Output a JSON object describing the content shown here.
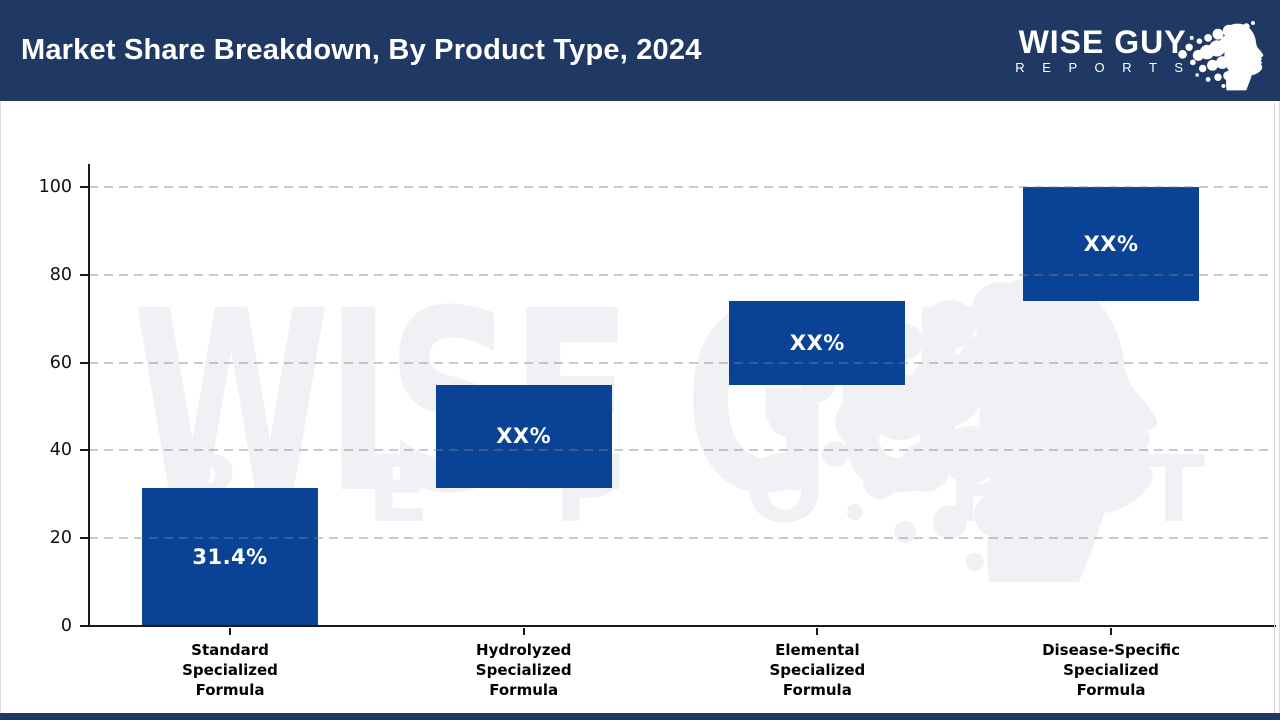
{
  "header": {
    "title": "Market Share Breakdown, By Product Type, 2024",
    "logo": {
      "brand": "WISE GUY",
      "tagline": "R E P O R T S"
    }
  },
  "watermark": {
    "brand": "WISE GUY",
    "tagline": "R E P O R T S"
  },
  "colors": {
    "header_bg": "#1f3864",
    "footer_bg": "#1f3864",
    "bar": "#0a4296",
    "bar_label": "#ffffff",
    "axis": "#1a1a1a",
    "gridline": "rgba(128,128,128,0.42)",
    "watermark": "#f0f1f4",
    "tick_text": "#111111"
  },
  "chart_data": {
    "type": "bar",
    "subtype": "waterfall",
    "title": "Market Share Breakdown, By Product Type, 2024",
    "xlabel": "",
    "ylabel": "",
    "ylim": [
      0,
      100
    ],
    "yticks": [
      0,
      20,
      40,
      60,
      80,
      100
    ],
    "grid": "horizontal dashed, drawn over bars",
    "legend_position": "none",
    "categories": [
      "Standard Specialized Formula",
      "Hydrolyzed Specialized Formula",
      "Elemental Specialized Formula",
      "Disease-Specific Specialized Formula"
    ],
    "bars": [
      {
        "category": "Standard Specialized Formula",
        "label_lines": [
          "Standard",
          "Specialized",
          "Formula"
        ],
        "start": 0,
        "end": 31.4,
        "value_label": "31.4%"
      },
      {
        "category": "Hydrolyzed Specialized Formula",
        "label_lines": [
          "Hydrolyzed",
          "Specialized",
          "Formula"
        ],
        "start": 31.4,
        "end": 55,
        "value_label": "XX%"
      },
      {
        "category": "Elemental Specialized Formula",
        "label_lines": [
          "Elemental",
          "Specialized",
          "Formula"
        ],
        "start": 55,
        "end": 74,
        "value_label": "XX%"
      },
      {
        "category": "Disease-Specific Specialized Formula",
        "label_lines": [
          "Disease-Specific",
          "Specialized",
          "Formula"
        ],
        "start": 74,
        "end": 100,
        "value_label": "XX%"
      }
    ]
  }
}
